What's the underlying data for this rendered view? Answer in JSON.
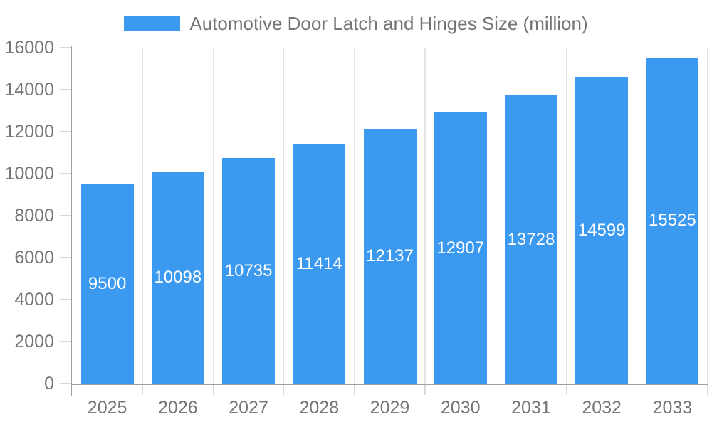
{
  "chart_data": {
    "type": "bar",
    "title": "Automotive Door Latch and Hinges Size (million)",
    "categories": [
      "2025",
      "2026",
      "2027",
      "2028",
      "2029",
      "2030",
      "2031",
      "2032",
      "2033"
    ],
    "values": [
      9500,
      10098,
      10735,
      11414,
      12137,
      12907,
      13728,
      14599,
      15525
    ],
    "xlabel": "",
    "ylabel": "",
    "ylim": [
      0,
      16000
    ],
    "ytick_step": 2000,
    "ytick_labels": [
      "0",
      "2000",
      "4000",
      "6000",
      "8000",
      "10000",
      "12000",
      "14000",
      "16000"
    ],
    "grid": true,
    "legend_position": "top-center",
    "bar_color": "#3C99F0",
    "bar_label_color": "#FFFFFF",
    "axis_text_color": "#757575",
    "grid_color": "#E4E4E4",
    "tick_color": "#D9D9D9",
    "axis_line_color": "#A0A0A0",
    "background_color": "#FFFFFF"
  }
}
